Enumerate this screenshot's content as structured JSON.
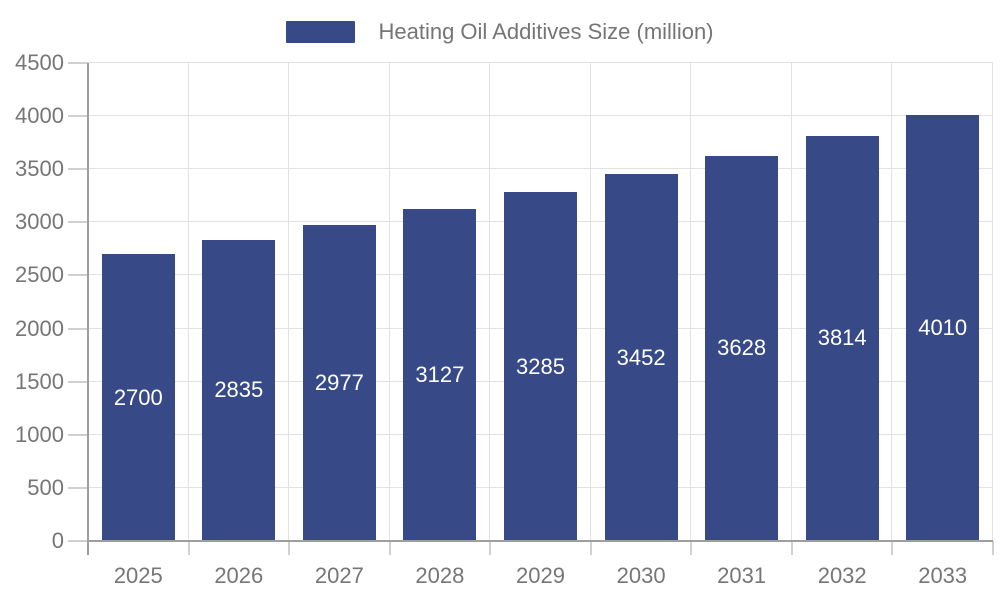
{
  "chart_data": {
    "type": "bar",
    "title": "Heating Oil Additives Size (million)",
    "categories": [
      "2025",
      "2026",
      "2027",
      "2028",
      "2029",
      "2030",
      "2031",
      "2032",
      "2033"
    ],
    "values": [
      2700,
      2835,
      2977,
      3127,
      3285,
      3452,
      3628,
      3814,
      4010
    ],
    "xlabel": "",
    "ylabel": "",
    "ylim": [
      0,
      4500
    ],
    "ytick_step": 500,
    "grid": true,
    "legend_position": "top",
    "value_label_position": "inside-middle"
  },
  "colors": {
    "bar": "#374a87",
    "value_label": "#ffffff",
    "axis_line": "#9e9e9e",
    "tick": "#d0d0d0",
    "gridline": "#e2e2e2",
    "text": "#767676",
    "background": "#ffffff"
  }
}
